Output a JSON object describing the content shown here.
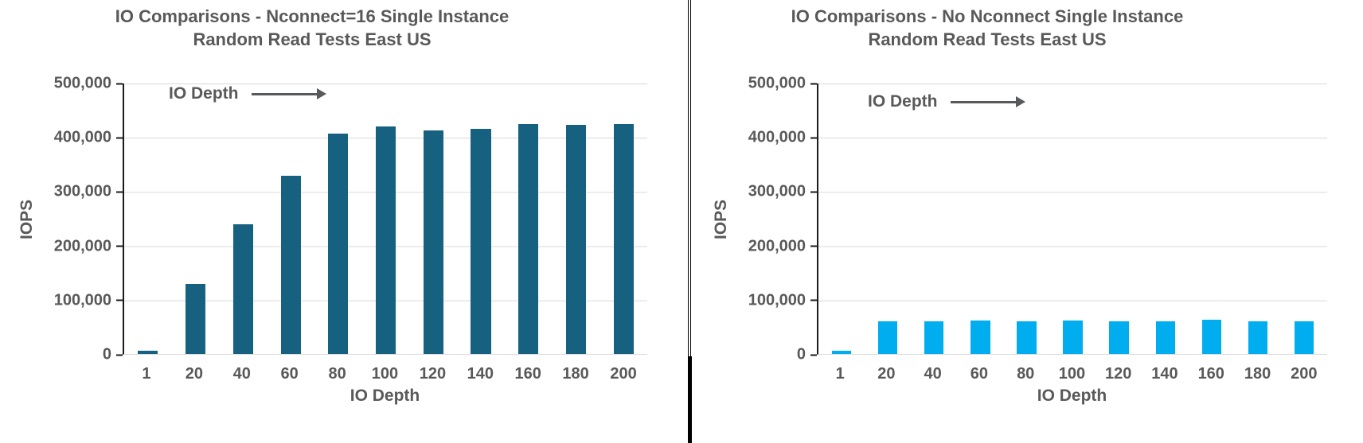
{
  "colors": {
    "text": "#595959",
    "gridline": "#D9D9D9",
    "axis": "#1a1a1a",
    "arrow": "#58595B",
    "divider": "#000000",
    "left_bar": "#166080",
    "right_bar": "#00AEEF"
  },
  "chart_data": [
    {
      "type": "bar",
      "title_line1": "IO Comparisons -  Nconnect=16 Single Instance",
      "title_line2": "Random Read Tests East US",
      "xlabel": "IO Depth",
      "ylabel": "IOPS",
      "annotation": "IO Depth",
      "categories": [
        "1",
        "20",
        "40",
        "60",
        "80",
        "100",
        "120",
        "140",
        "160",
        "180",
        "200"
      ],
      "values": [
        5500,
        129000,
        239000,
        330000,
        408000,
        421000,
        413000,
        416000,
        425000,
        423000,
        425000
      ],
      "ymax": 500000,
      "ylim": [
        0,
        500000
      ],
      "yticks": [
        "500,000",
        "400,000",
        "300,000",
        "200,000",
        "100,000",
        "0"
      ],
      "bar_color": "#166080",
      "grid": true,
      "legend": "none"
    },
    {
      "type": "bar",
      "title_line1": "IO Comparisons - No Nconnect Single Instance",
      "title_line2": "Random Read Tests East US",
      "xlabel": "IO Depth",
      "ylabel": "IOPS",
      "annotation": "IO Depth",
      "categories": [
        "1",
        "20",
        "40",
        "60",
        "80",
        "100",
        "120",
        "140",
        "160",
        "180",
        "200"
      ],
      "values": [
        6500,
        61000,
        61000,
        62000,
        61000,
        62000,
        61000,
        61000,
        63000,
        61000,
        61000
      ],
      "ymax": 500000,
      "ylim": [
        0,
        500000
      ],
      "yticks": [
        "500,000",
        "400,000",
        "300,000",
        "200,000",
        "100,000",
        "0"
      ],
      "bar_color": "#00AEEF",
      "grid": true,
      "legend": "none"
    }
  ]
}
